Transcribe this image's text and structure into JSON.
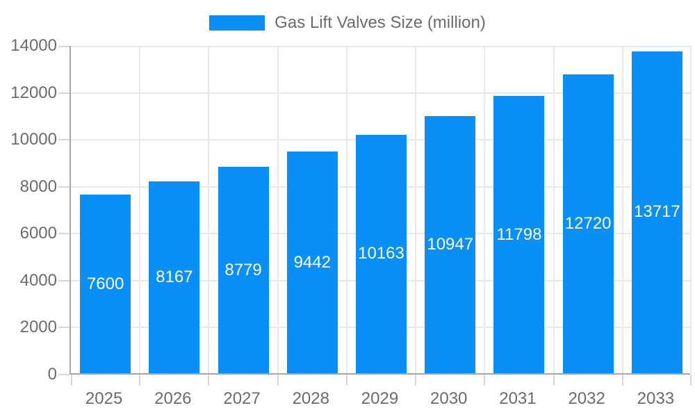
{
  "legend": {
    "items": [
      {
        "label": "Gas Lift Valves Size (million)",
        "color": "#0890f8"
      }
    ]
  },
  "chart_data": {
    "type": "bar",
    "title": "Gas Lift Valves Size (million)",
    "categories": [
      "2025",
      "2026",
      "2027",
      "2028",
      "2029",
      "2030",
      "2031",
      "2032",
      "2033"
    ],
    "series": [
      {
        "name": "Gas Lift Valves Size (million)",
        "color": "#0890f8",
        "values": [
          7600,
          8167,
          8779,
          9442,
          10163,
          10947,
          11798,
          12720,
          13717
        ]
      }
    ],
    "xlabel": "",
    "ylabel": "",
    "ylim": [
      0,
      14000
    ],
    "yticks": [
      0,
      2000,
      4000,
      6000,
      8000,
      10000,
      12000,
      14000
    ],
    "grid": true,
    "legend_position": "top-center",
    "data_labels_position": "inside-center",
    "data_label_color": "#ffffff",
    "axis_text_color": "#6b6b6b"
  },
  "colors": {
    "bar": "#0890f8",
    "gridline": "#e8e8e8",
    "tick": "#d6d6d6",
    "axis_line": "#a6a6a6",
    "axis_text": "#6b6b6b",
    "bar_label_text": "#ffffff",
    "background": "#ffffff"
  }
}
